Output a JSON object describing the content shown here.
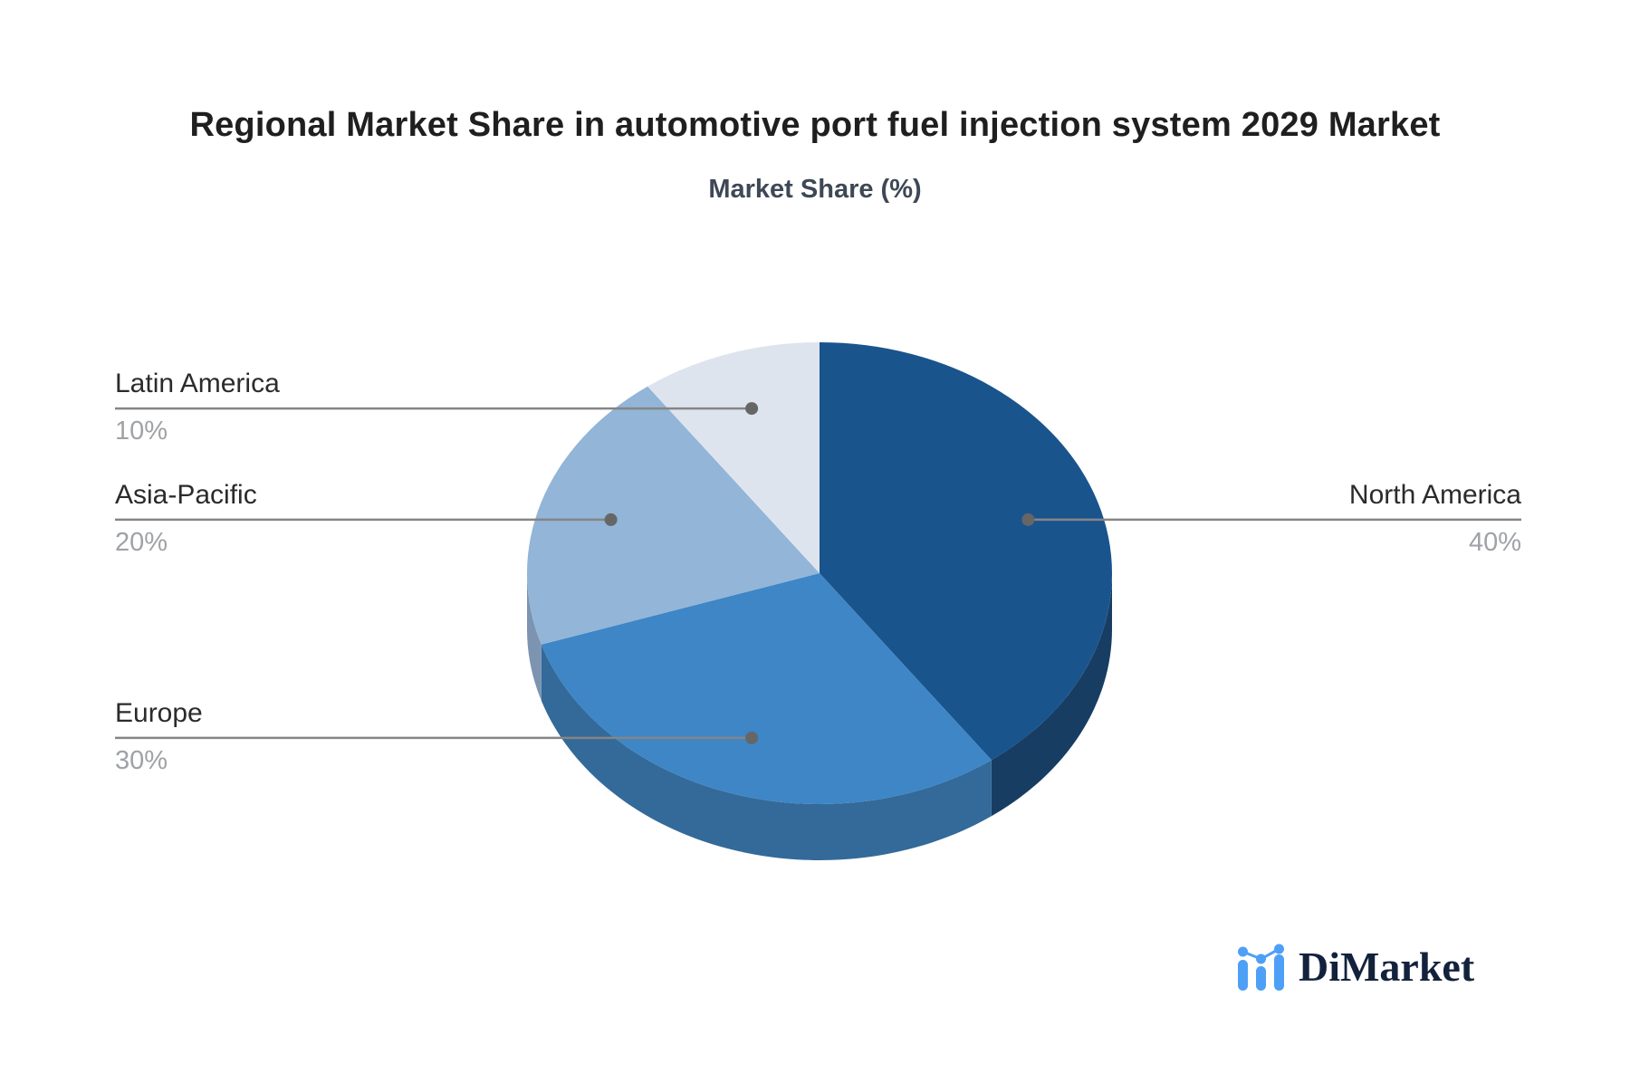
{
  "title": "Regional Market Share in automotive port fuel injection system 2029 Market",
  "subtitle": "Market Share (%)",
  "logo": {
    "text": "DiMarket",
    "icon": "bar-line-chart-logo-icon",
    "icon_color": "#4da0f6",
    "text_color": "#13223c"
  },
  "chart_data": {
    "type": "pie",
    "title": "Regional Market Share in automotive port fuel injection system 2029 Market",
    "subtitle": "Market Share (%)",
    "unit": "%",
    "style": "3d",
    "start_angle_deg": 0,
    "direction": "clockwise",
    "legend": "none",
    "slices": [
      {
        "label": "North America",
        "value": 40,
        "display": "40%",
        "color": "#1a548c",
        "side_color": "#173d63",
        "label_side": "right"
      },
      {
        "label": "Europe",
        "value": 30,
        "display": "30%",
        "color": "#3e86c6",
        "side_color": "#336a99",
        "label_side": "left"
      },
      {
        "label": "Asia-Pacific",
        "value": 20,
        "display": "20%",
        "color": "#92b5d8",
        "side_color": "#7c94b0",
        "label_side": "left"
      },
      {
        "label": "Latin America",
        "value": 10,
        "display": "10%",
        "color": "#dee4ee",
        "side_color": "#b9c2d2",
        "label_side": "left"
      }
    ],
    "leader_line_color": "#858585",
    "leader_dot_color": "#666666",
    "label_name_color": "#2b2b2b",
    "label_value_color": "#9fa2a6"
  }
}
